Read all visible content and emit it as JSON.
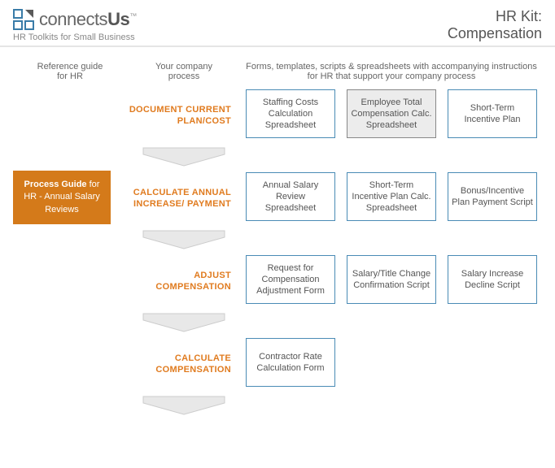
{
  "header": {
    "logo_text_1": "connects",
    "logo_text_2": "Us",
    "tm": "™",
    "tagline": "HR Toolkits for Small Business",
    "title_line1": "HR Kit:",
    "title_line2": "Compensation"
  },
  "columns": {
    "h1": "Reference guide\nfor HR",
    "h2": "Your company\nprocess",
    "h3": "Forms, templates, scripts & spreadsheets with accompanying instructions\nfor HR that support your company process"
  },
  "process_guide": {
    "bold": "Process Guide",
    "rest": " for HR - Annual Salary Reviews"
  },
  "steps": [
    {
      "label": "DOCUMENT CURRENT PLAN/COST",
      "forms": [
        {
          "text": "Staffing Costs Calculation Spreadsheet",
          "highlight": false
        },
        {
          "text": "Employee Total Compensation Calc. Spreadsheet",
          "highlight": true
        },
        {
          "text": "Short-Term Incentive Plan",
          "highlight": false
        }
      ]
    },
    {
      "label": "CALCULATE ANNUAL INCREASE/ PAYMENT",
      "forms": [
        {
          "text": "Annual Salary Review Spreadsheet",
          "highlight": false
        },
        {
          "text": "Short-Term Incentive Plan Calc. Spreadsheet",
          "highlight": false
        },
        {
          "text": "Bonus/Incentive Plan Payment Script",
          "highlight": false
        }
      ]
    },
    {
      "label": "ADJUST COMPENSATION",
      "forms": [
        {
          "text": "Request for Compensation Adjustment Form",
          "highlight": false
        },
        {
          "text": "Salary/Title Change Confirmation Script",
          "highlight": false
        },
        {
          "text": "Salary Increase Decline Script",
          "highlight": false
        }
      ]
    },
    {
      "label": "CALCULATE COMPENSATION",
      "forms": [
        {
          "text": "Contractor Rate Calculation Form",
          "highlight": false
        }
      ]
    }
  ],
  "colors": {
    "orange": "#e07b1f",
    "orange_fill": "#d47a1a",
    "box_border": "#4a8bb5",
    "highlight_bg": "#ececec",
    "highlight_border": "#888888",
    "arrow_fill": "#e8e8e8",
    "arrow_stroke": "#cccccc",
    "logo_blue": "#3a7ca8",
    "logo_dark": "#5a5a5a"
  }
}
